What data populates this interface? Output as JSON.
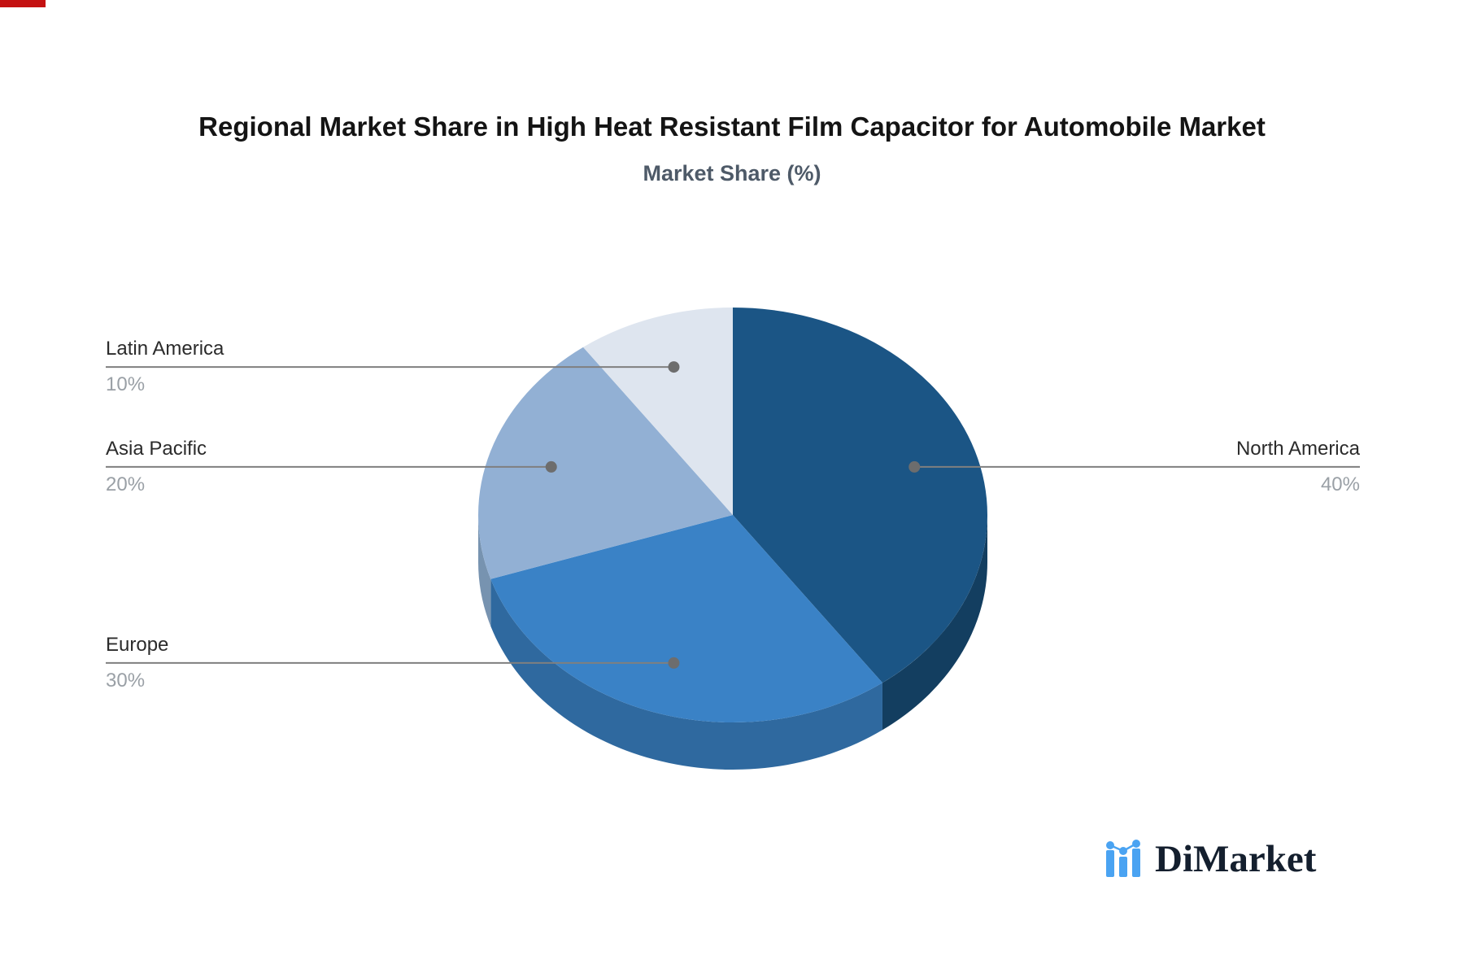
{
  "page": {
    "background": "#ffffff",
    "artifact_color": "#c41111"
  },
  "chart_data": {
    "type": "pie",
    "style": "3d-pie",
    "title": "Regional Market Share in High Heat Resistant Film Capacitor for Automobile Market",
    "subtitle": "Market Share (%)",
    "unit": "%",
    "start_angle_deg": 0,
    "direction": "clockwise",
    "legend_position": "callout-labels",
    "slices": [
      {
        "label": "North America",
        "value": 40,
        "pct_label": "40%",
        "color": "#1b5585",
        "side_color": "#133e60",
        "label_side": "right"
      },
      {
        "label": "Europe",
        "value": 30,
        "pct_label": "30%",
        "color": "#3a82c6",
        "side_color": "#2f699f",
        "label_side": "left"
      },
      {
        "label": "Asia Pacific",
        "value": 20,
        "pct_label": "20%",
        "color": "#92b0d4",
        "side_color": "#7793b0",
        "label_side": "left"
      },
      {
        "label": "Latin America",
        "value": 10,
        "pct_label": "10%",
        "color": "#dee5ef",
        "side_color": "#b9c5d7",
        "label_side": "left"
      }
    ],
    "colors": {
      "label_text": "#2b2b2b",
      "pct_text": "#9aa0a6",
      "leader_line": "#7f7f7f",
      "leader_dot": "#6d6d6d"
    }
  },
  "brand": {
    "name": "DiMarket",
    "logo_icon": "bar-chart-logo-icon",
    "icon_color": "#4aa3f2",
    "text_color": "#141f2e"
  }
}
